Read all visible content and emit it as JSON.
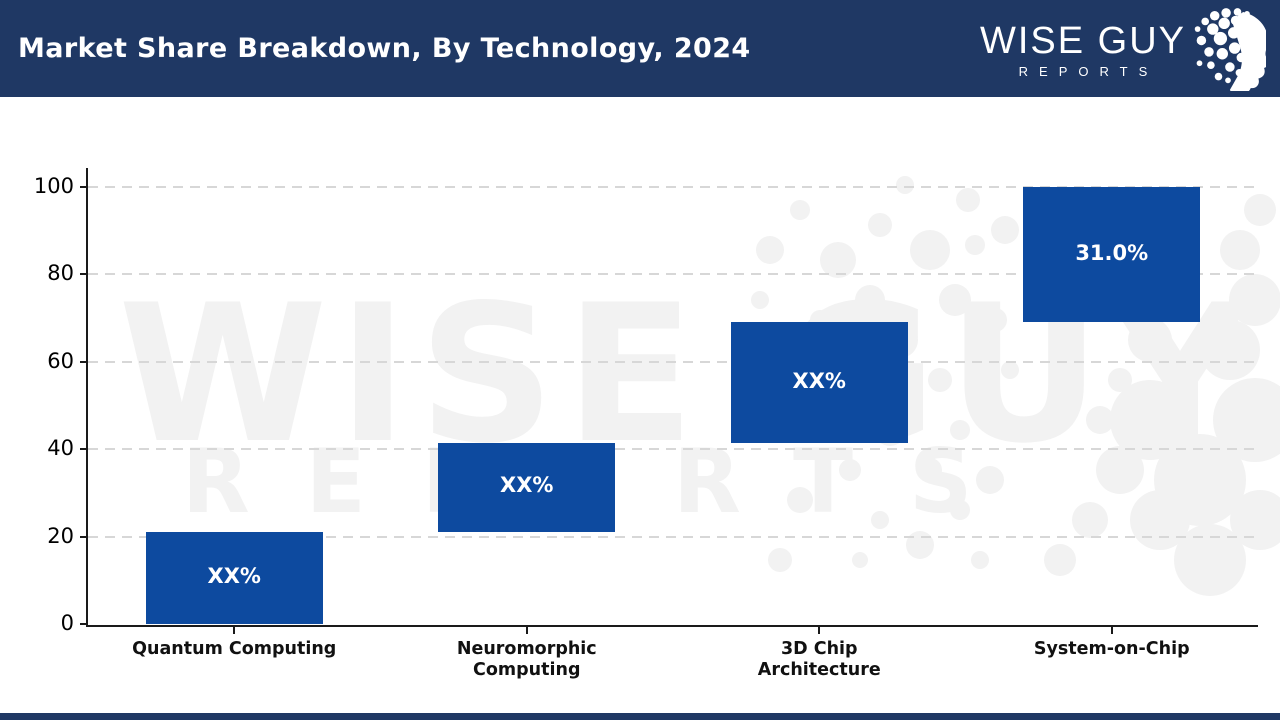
{
  "header": {
    "title": "Market Share Breakdown, By Technology, 2024",
    "bg_color": "#1f3864",
    "logo": {
      "line1": "WISE GUY",
      "line2": "REPORTS"
    }
  },
  "watermark": {
    "line1": "WISE GUY",
    "line2": "REPORTS"
  },
  "chart_data": {
    "type": "bar",
    "variant": "waterfall",
    "title": "Market Share Breakdown, By Technology, 2024",
    "categories": [
      "Quantum Computing",
      "Neuromorphic Computing",
      "3D Chip Architecture",
      "System-on-Chip"
    ],
    "category_label_lines": [
      [
        "Quantum Computing"
      ],
      [
        "Neuromorphic",
        "Computing"
      ],
      [
        "3D Chip",
        "Architecture"
      ],
      [
        "System-on-Chip"
      ]
    ],
    "series": [
      {
        "name": "Market Share (%)",
        "segments": [
          {
            "category": "Quantum Computing",
            "start": 0,
            "end": 21,
            "label": "XX%"
          },
          {
            "category": "Neuromorphic Computing",
            "start": 21,
            "end": 41.5,
            "label": "XX%"
          },
          {
            "category": "3D Chip Architecture",
            "start": 41.5,
            "end": 69,
            "label": "XX%"
          },
          {
            "category": "System-on-Chip",
            "start": 69,
            "end": 100,
            "label": "31.0%"
          }
        ]
      }
    ],
    "yticks": [
      0,
      20,
      40,
      60,
      80,
      100
    ],
    "ylim": [
      0,
      105
    ],
    "xlabel": "",
    "ylabel": "",
    "grid": "horizontal-dashed",
    "legend": "none",
    "bar_color": "#0d4a9f",
    "bar_label_color": "#ffffff",
    "axis_color": "#1a1a1a",
    "grid_color": "#d7d7d7"
  }
}
